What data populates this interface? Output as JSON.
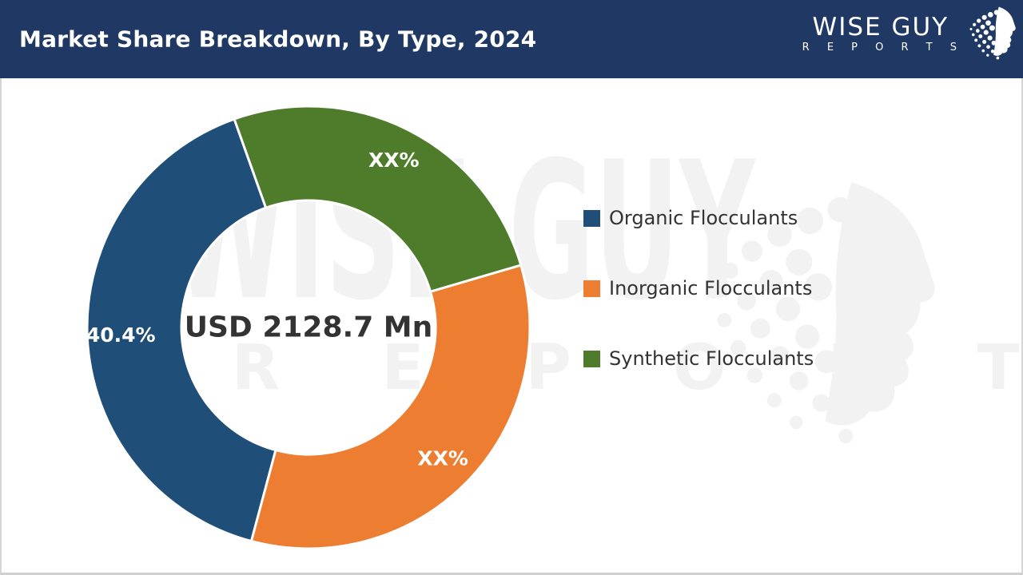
{
  "header": {
    "title": "Market Share Breakdown, By Type, 2024",
    "bg_color": "#1f3864",
    "logo": {
      "line1": "WISE GUY",
      "line2": "R E P O R T S"
    }
  },
  "chart_data": {
    "type": "pie",
    "subtype": "donut",
    "title": "Market Share Breakdown, By Type, 2024",
    "center_label": "USD 2128.7 Mn",
    "categories": [
      "Organic Flocculants",
      "Inorganic Flocculants",
      "Synthetic Flocculants"
    ],
    "values": [
      40.4,
      33.7,
      25.9
    ],
    "slice_labels": [
      "40.4%",
      "XX%",
      "XX%"
    ],
    "colors": [
      "#1f4e79",
      "#ed7d31",
      "#4e7c2b"
    ],
    "start_angle_deg": 109.6,
    "direction": "counterclockwise",
    "inner_radius_ratio": 0.575,
    "legend_position": "right"
  },
  "legend": {
    "items": [
      {
        "label": "Organic Flocculants",
        "color": "#1f4e79"
      },
      {
        "label": "Inorganic Flocculants",
        "color": "#ed7d31"
      },
      {
        "label": "Synthetic Flocculants",
        "color": "#4e7c2b"
      }
    ]
  },
  "watermark": {
    "line1": "WISE GUY",
    "line2": "R E P O R T S"
  }
}
